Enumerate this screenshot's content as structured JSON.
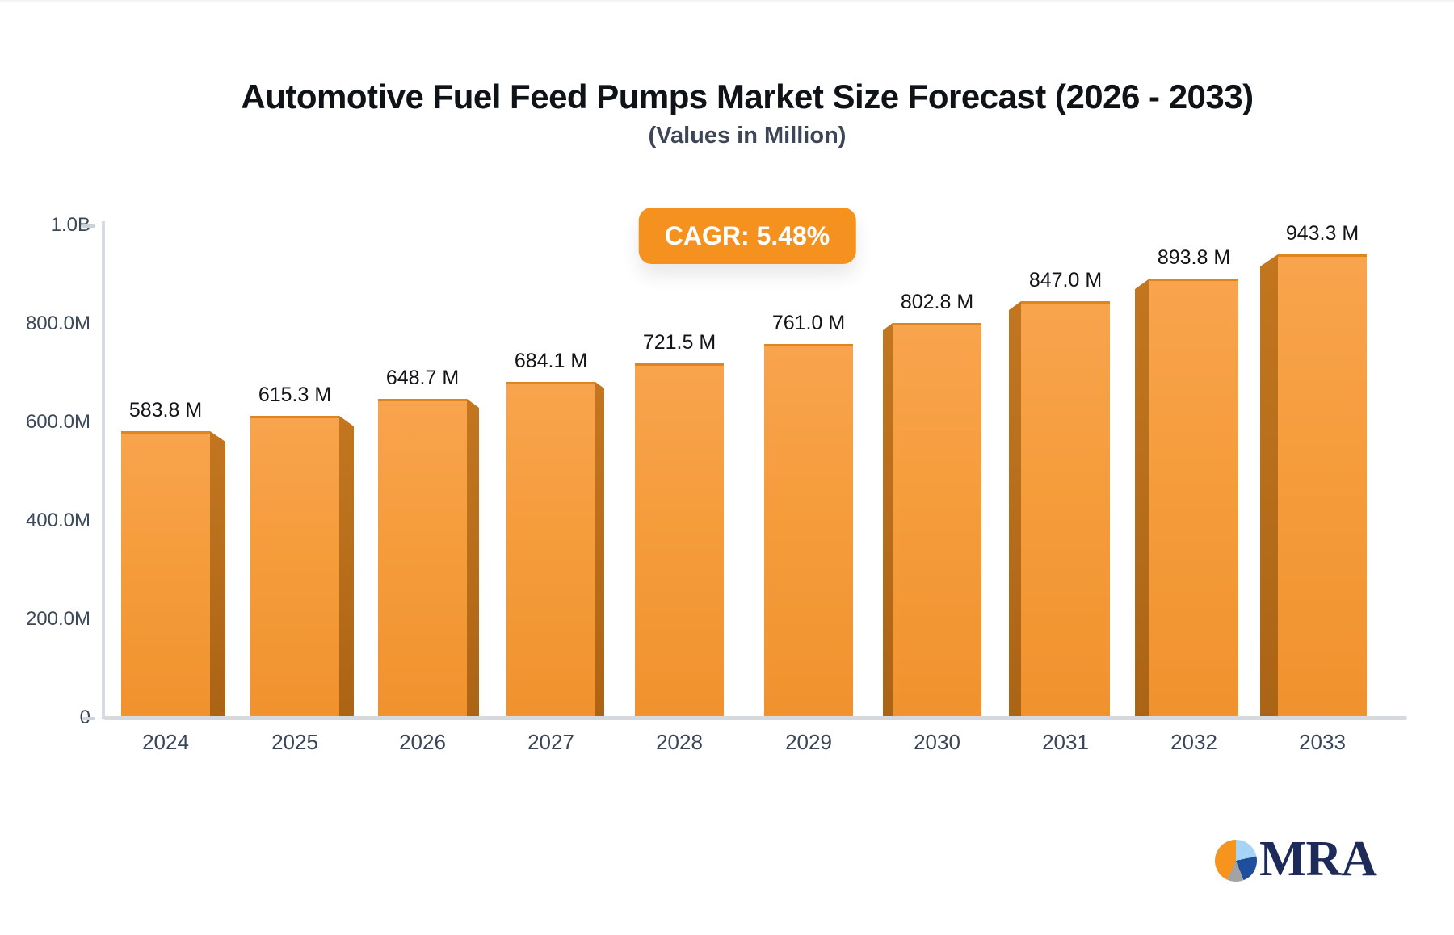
{
  "page": {
    "title": "Automotive Fuel Feed Pumps Market Size Forecast (2026 - 2033)",
    "subtitle": "(Values in Million)",
    "cagr_badge": "CAGR: 5.48%"
  },
  "chart_data": {
    "type": "bar",
    "title": "Automotive Fuel Feed Pumps Market Size Forecast (2026 - 2033)",
    "subtitle": "(Values in Million)",
    "cagr_percent": 5.48,
    "categories": [
      "2024",
      "2025",
      "2026",
      "2027",
      "2028",
      "2029",
      "2030",
      "2031",
      "2032",
      "2033"
    ],
    "values": [
      583.8,
      615.3,
      648.7,
      684.1,
      721.5,
      761.0,
      802.8,
      847.0,
      893.8,
      943.3
    ],
    "value_labels": [
      "583.8 M",
      "615.3 M",
      "648.7 M",
      "684.1 M",
      "721.5 M",
      "761.0 M",
      "802.8 M",
      "847.0 M",
      "893.8 M",
      "943.3 M"
    ],
    "xlabel": "",
    "ylabel": "",
    "ylim": [
      0,
      1000
    ],
    "yticks": [
      {
        "label": "1.0B",
        "value": 1000,
        "tick_dash": true
      },
      {
        "label": "800.0M",
        "value": 800,
        "tick_dash": false
      },
      {
        "label": "600.0M",
        "value": 600,
        "tick_dash": false
      },
      {
        "label": "400.0M",
        "value": 400,
        "tick_dash": false
      },
      {
        "label": "200.0M",
        "value": 200,
        "tick_dash": false
      },
      {
        "label": "0",
        "value": 0,
        "tick_dash": true
      }
    ],
    "grid": false,
    "legend": null,
    "bar_style": "3d-perspective",
    "bar_color": "#f59c3b",
    "bar_side_color": "#b56c1a"
  },
  "logo": {
    "text": "MRA",
    "icon": "pie-chart-icon",
    "pie_colors": [
      "#f7941e",
      "#a6d4f7",
      "#1d4f9e",
      "#a3a3a3"
    ],
    "text_color": "#1d2a5a"
  },
  "colors": {
    "accent_orange": "#f5921f",
    "axis_gray": "#d6dade",
    "title_text": "#0f1216",
    "slate_text": "#3b4859"
  }
}
